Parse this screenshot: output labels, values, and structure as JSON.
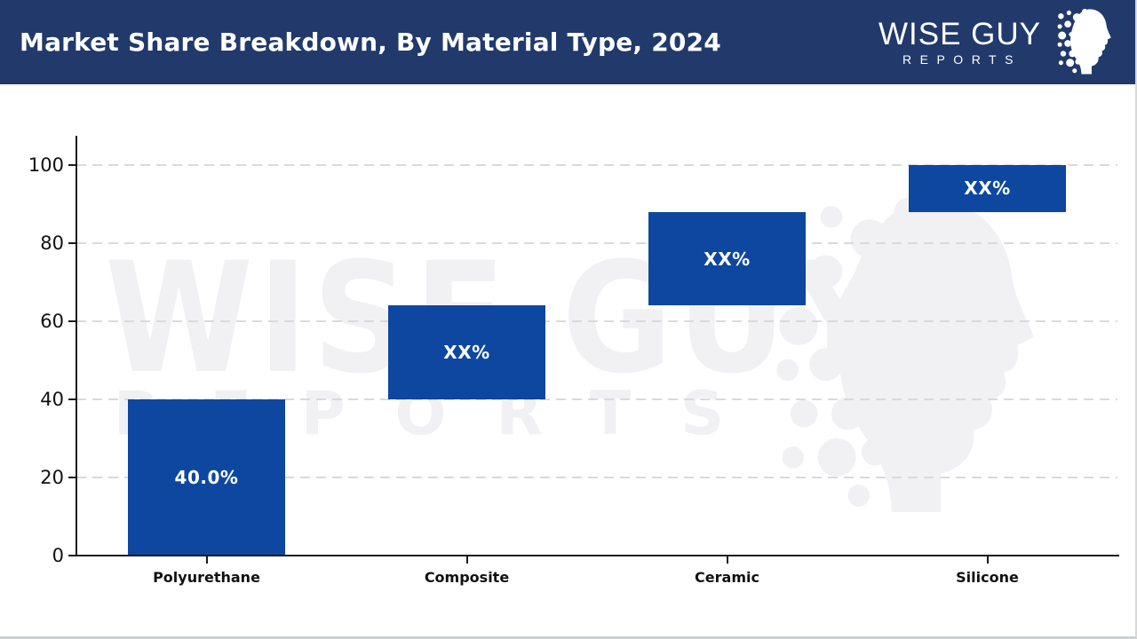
{
  "header": {
    "title": "Market Share Breakdown, By Material Type, 2024",
    "logo": {
      "line1": "WISE GUY",
      "line2": "REPORTS"
    }
  },
  "watermark": {
    "line1": "WISE GUY",
    "line2": "REPORTS"
  },
  "chart_data": {
    "type": "bar",
    "subtype": "waterfall",
    "title": "Market Share Breakdown, By Material Type, 2024",
    "categories": [
      "Polyurethane",
      "Composite",
      "Ceramic",
      "Silicone"
    ],
    "segments": [
      {
        "category": "Polyurethane",
        "start": 0,
        "end": 40,
        "label": "40.0%"
      },
      {
        "category": "Composite",
        "start": 40,
        "end": 64,
        "label": "XX%"
      },
      {
        "category": "Ceramic",
        "start": 64,
        "end": 88,
        "label": "XX%"
      },
      {
        "category": "Silicone",
        "start": 88,
        "end": 100,
        "label": "XX%"
      }
    ],
    "xlabel": "",
    "ylabel": "",
    "ylim": [
      0,
      105
    ],
    "yticks": [
      0,
      20,
      40,
      60,
      80,
      100
    ],
    "grid": "horizontal-dashed",
    "legend": "none",
    "bar_color": "#0d479f",
    "bar_label_color": "#ffffff"
  },
  "colors": {
    "header_bg": "#213a6b",
    "bar": "#0d479f",
    "axis": "#1a1a1a",
    "grid": "#dadada",
    "watermark": "#f1f1f4"
  }
}
